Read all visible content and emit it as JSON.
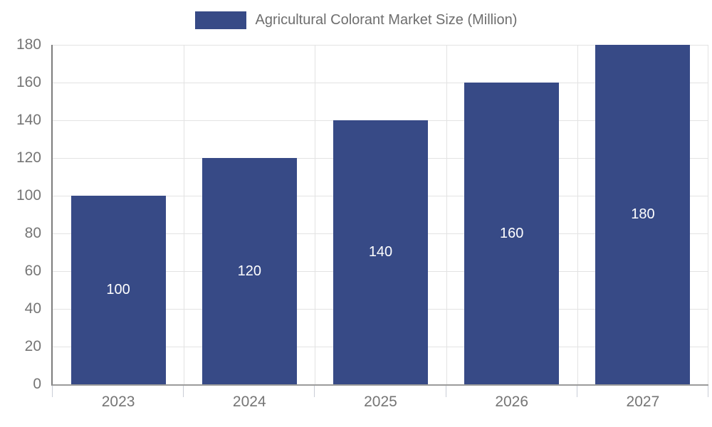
{
  "chart_data": {
    "type": "bar",
    "title": "Agricultural Colorant Market Size (Million)",
    "legend_entries": [
      "Agricultural Colorant Market Size (Million)"
    ],
    "categories": [
      "2023",
      "2024",
      "2025",
      "2026",
      "2027"
    ],
    "values": [
      100,
      120,
      140,
      160,
      180
    ],
    "yticks": [
      0,
      20,
      40,
      60,
      80,
      100,
      120,
      140,
      160,
      180
    ],
    "ylim": [
      0,
      180
    ],
    "xlabel": "",
    "ylabel": "",
    "grid": true,
    "legend_position": "top-center",
    "bar_labels_inside": true
  },
  "colors": {
    "background": "#ffffff",
    "bar": "#374A86",
    "bar_label": "#ffffff",
    "grid": "#e3e3e3",
    "axis_y": "#7d7d7d",
    "axis_x": "#9b9b9b",
    "tick": "#c9cdd6",
    "tick_label": "#757575",
    "legend_text": "#6e6e6e"
  }
}
